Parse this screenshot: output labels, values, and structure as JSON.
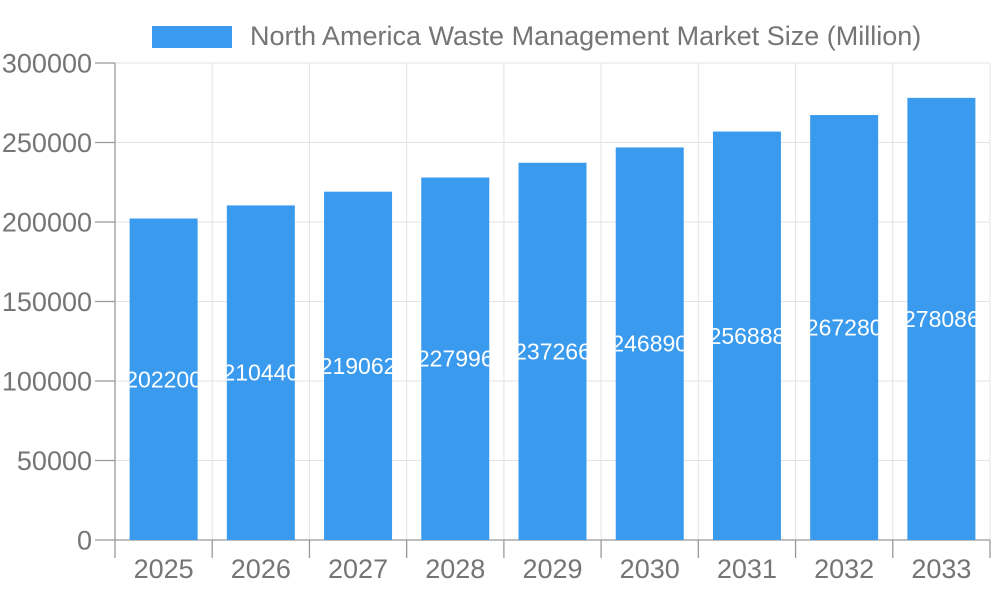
{
  "chart_data": {
    "type": "bar",
    "title": "North America Waste Management Market Size (Million)",
    "legend_label": "North America Waste Management Market Size (Million)",
    "legend_position": "top",
    "categories": [
      "2025",
      "2026",
      "2027",
      "2028",
      "2029",
      "2030",
      "2031",
      "2032",
      "2033"
    ],
    "series": [
      {
        "name": "North America Waste Management Market Size (Million)",
        "values": [
          202200,
          210440,
          219062,
          227996,
          237266,
          246890,
          256888,
          267280,
          278086
        ]
      }
    ],
    "bar_value_labels": [
      "202200",
      "210440",
      "219062",
      "227996",
      "237266",
      "246890",
      "256888",
      "267280",
      "278086"
    ],
    "xlabel": "",
    "ylabel": "",
    "ylim": [
      0,
      300000
    ],
    "ytick_step": 50000,
    "yticks": [
      0,
      50000,
      100000,
      150000,
      200000,
      250000,
      300000
    ],
    "grid": true,
    "colors": {
      "bar": "#3a9bee",
      "bar_value_text": "#ffffff",
      "axis_line": "#999999",
      "tick_mark": "#999999",
      "axis_text": "#757575",
      "gridline": "#e3e3e3",
      "background": "#ffffff"
    }
  }
}
